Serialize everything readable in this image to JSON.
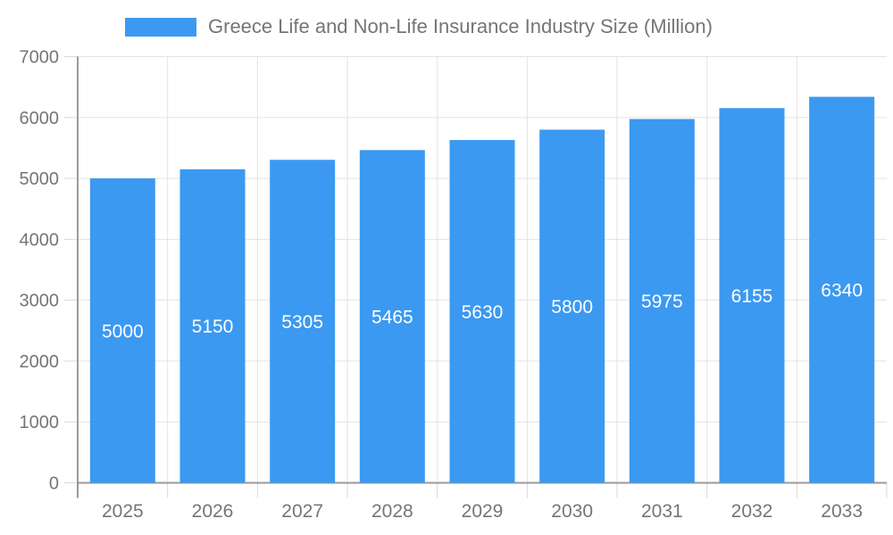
{
  "window": {
    "background_color": "#ffffff"
  },
  "legend": {
    "label": "Greece Life and Non-Life Insurance Industry Size (Million)",
    "swatch_color": "#3b99f1",
    "position": "top"
  },
  "chart_data": {
    "type": "bar",
    "title": "Greece Life and Non-Life Insurance Industry Size (Million)",
    "categories": [
      "2025",
      "2026",
      "2027",
      "2028",
      "2029",
      "2030",
      "2031",
      "2032",
      "2033"
    ],
    "series": [
      {
        "name": "Greece Life and Non-Life Insurance Industry Size (Million)",
        "values": [
          5000,
          5150,
          5305,
          5465,
          5630,
          5800,
          5975,
          6155,
          6340
        ]
      }
    ],
    "values": [
      5000,
      5150,
      5305,
      5465,
      5630,
      5800,
      5975,
      6155,
      6340
    ],
    "value_labels": [
      "5000",
      "5150",
      "5305",
      "5465",
      "5630",
      "5800",
      "5975",
      "6155",
      "6340"
    ],
    "xlabel": "",
    "ylabel": "",
    "ylim": [
      0,
      7000
    ],
    "yticks": [
      0,
      1000,
      2000,
      3000,
      4000,
      5000,
      6000,
      7000
    ],
    "ytick_labels": [
      "0",
      "1000",
      "2000",
      "3000",
      "4000",
      "5000",
      "6000",
      "7000"
    ],
    "grid": true,
    "legend_position": "top",
    "value_labels_visible": true,
    "colors": {
      "bar": "#3b99f1",
      "value_label_text": "#ffffff",
      "axis_text": "#757575",
      "grid_line": "#e3e3e3",
      "tick_line": "#d9d9d9",
      "axis_line": "#9a9a9a"
    }
  }
}
